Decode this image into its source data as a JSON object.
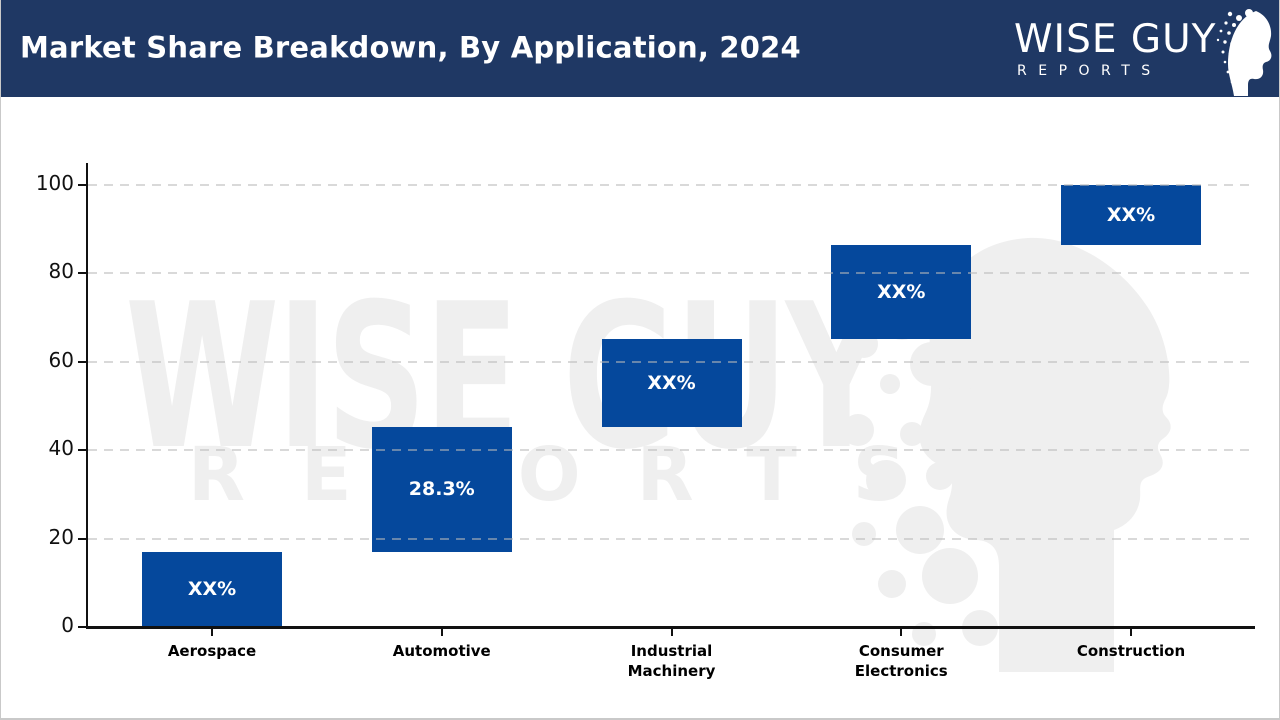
{
  "header": {
    "title": "Market Share Breakdown, By Application, 2024",
    "logo": {
      "line1": "WISE GUY",
      "line2": "REPORTS"
    }
  },
  "watermark": {
    "line1": "WISE GUY",
    "line2": "REPORTS"
  },
  "colors": {
    "header_bg": "#1f3864",
    "bar_blue": "#05489c",
    "axis": "#111111",
    "gridline": "#dcdcdc",
    "watermark": "#efefef",
    "bar_label": "#ffffff"
  },
  "chart_data": {
    "type": "bar",
    "subtype": "waterfall",
    "title": "Market Share Breakdown, By Application, 2024",
    "categories": [
      "Aerospace",
      "Automotive",
      "Industrial Machinery",
      "Consumer Electronics",
      "Construction"
    ],
    "category_lines": [
      [
        "Aerospace"
      ],
      [
        "Automotive"
      ],
      [
        "Industrial",
        "Machinery"
      ],
      [
        "Consumer",
        "Electronics"
      ],
      [
        "Construction"
      ]
    ],
    "segments": [
      {
        "category": "Aerospace",
        "start": 0,
        "end": 17,
        "label": "XX%"
      },
      {
        "category": "Automotive",
        "start": 17,
        "end": 45.3,
        "label": "28.3%"
      },
      {
        "category": "Industrial Machinery",
        "start": 45.3,
        "end": 65.1,
        "label": "XX%"
      },
      {
        "category": "Consumer Electronics",
        "start": 65.1,
        "end": 86.4,
        "label": "XX%"
      },
      {
        "category": "Construction",
        "start": 86.4,
        "end": 100,
        "label": "XX%"
      }
    ],
    "xlabel": "",
    "ylabel": "",
    "yticks": [
      0,
      20,
      40,
      60,
      80,
      100
    ],
    "ylim": [
      0,
      105
    ],
    "grid": "horizontal-dashed",
    "grid_above_bars": true,
    "legend": "none"
  }
}
